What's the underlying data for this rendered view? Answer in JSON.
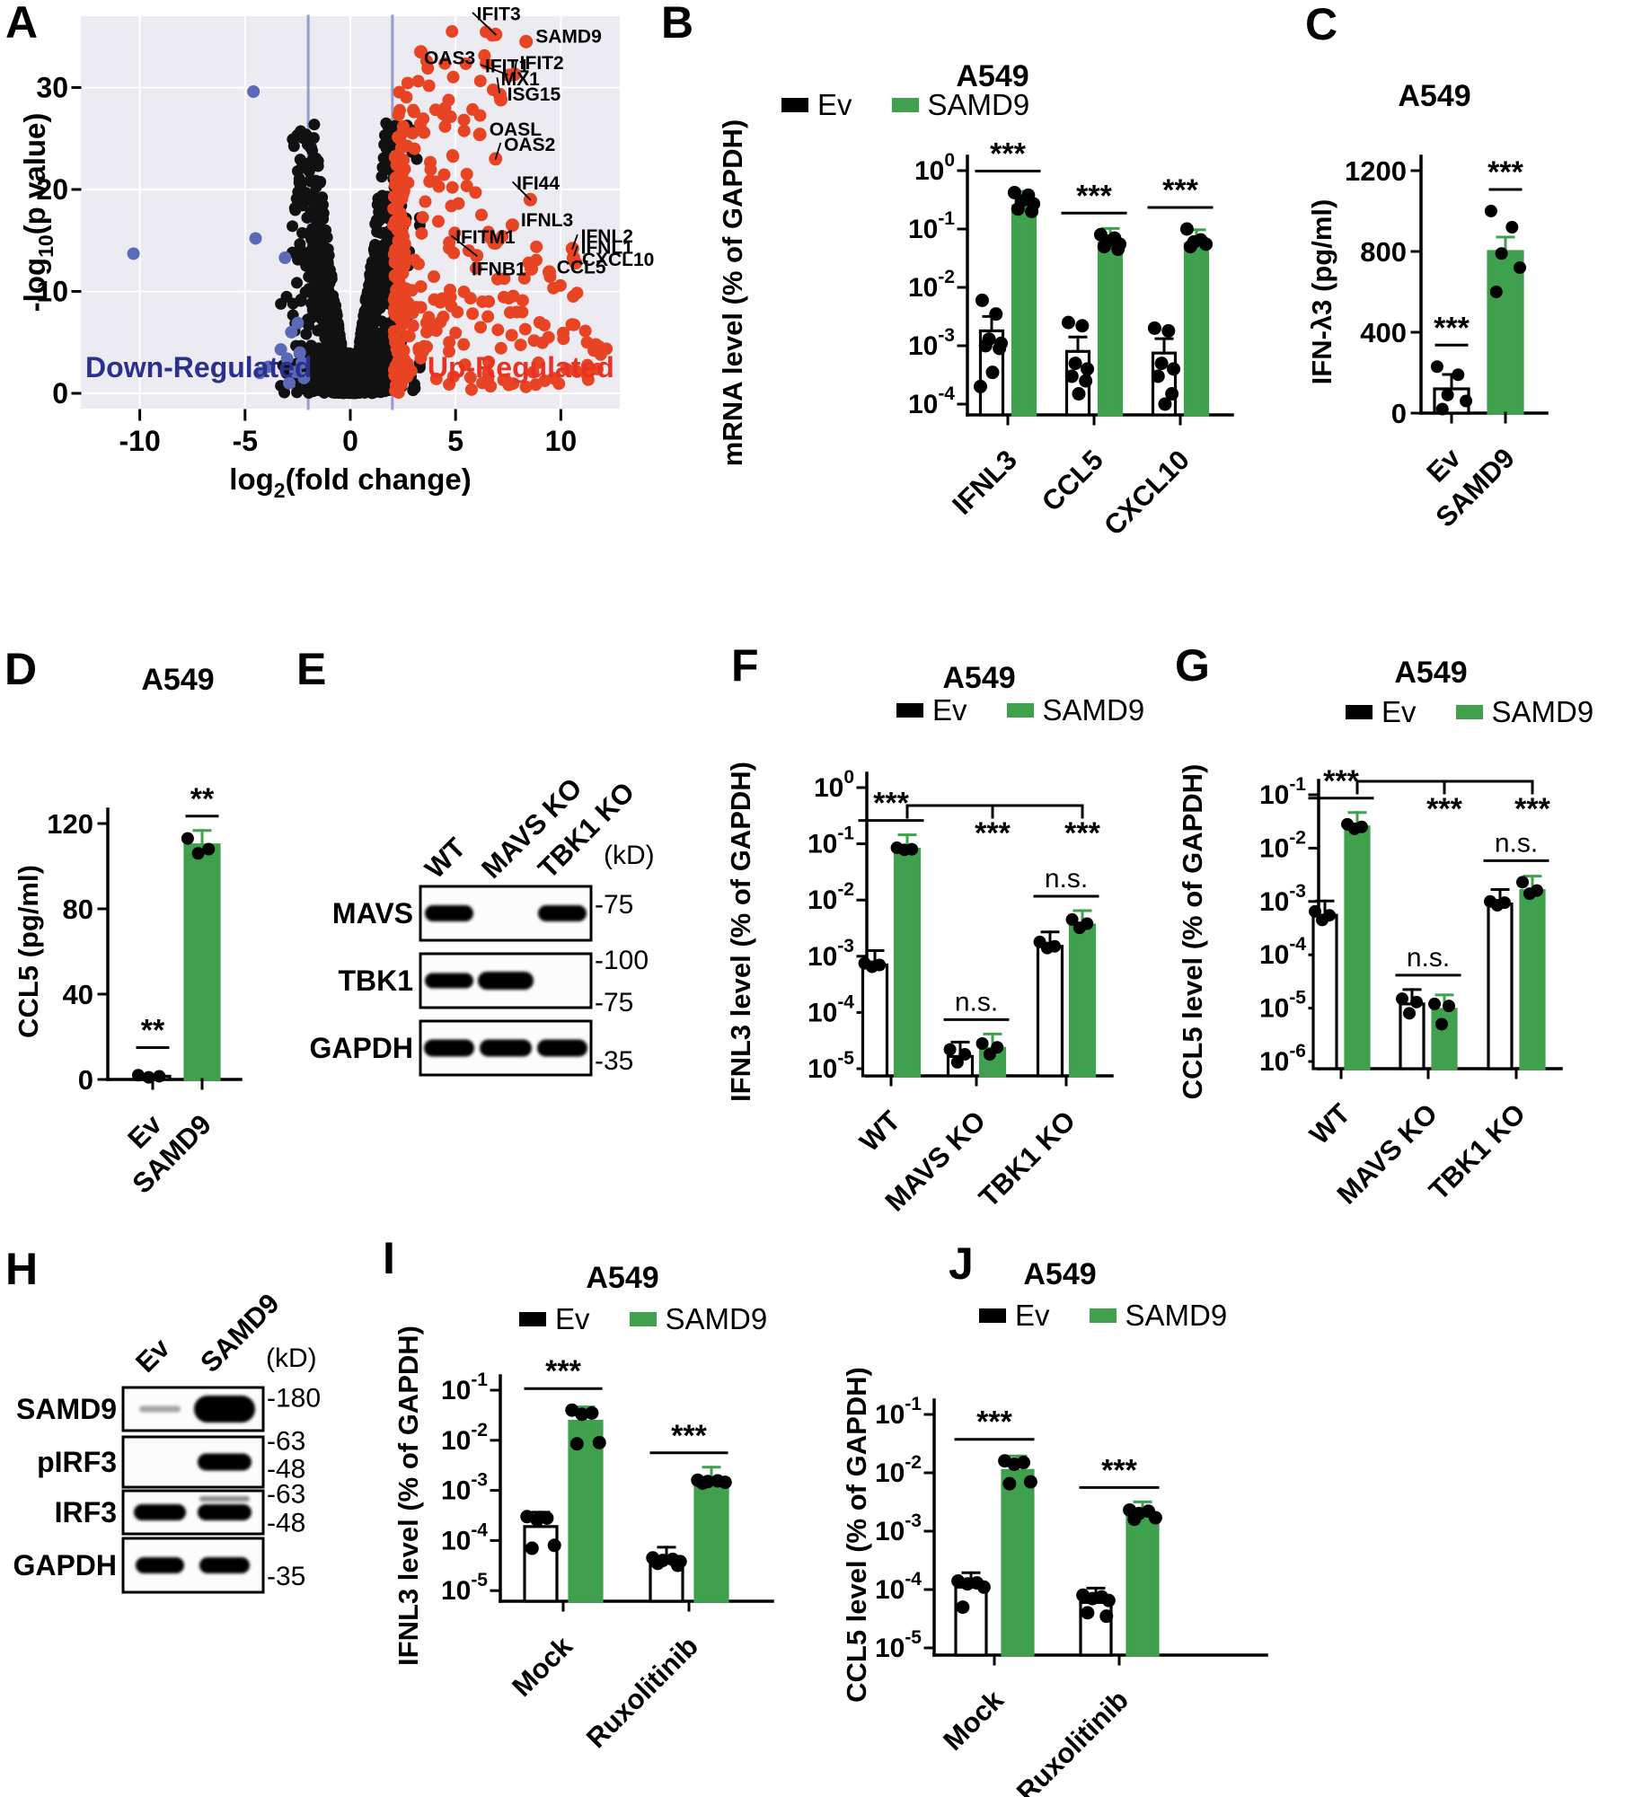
{
  "colors": {
    "green": "#3FA04D",
    "up_red": "#E84423",
    "down_blue": "#5A6AB7",
    "threshold_line": "#969BD2",
    "down_text": "#2B2F8E",
    "up_text": "#E93223",
    "plot_bg": "#EBEBF1",
    "grid": "#FFFFFF",
    "black": "#000000"
  },
  "legend": {
    "ev": "Ev",
    "samd9": "SAMD9"
  },
  "panels": {
    "A": {
      "label": "A",
      "chart_data": {
        "type": "scatter",
        "xlabel_main": "log",
        "xlabel_sub": "2",
        "xlabel_rest": "(fold change)",
        "ylabel_main": "-log",
        "ylabel_sub": "10",
        "ylabel_rest": "(p value)",
        "xticks": [
          -10,
          -5,
          0,
          5,
          10
        ],
        "yticks": [
          0,
          10,
          20,
          30
        ],
        "xlim": [
          -12.8,
          12.8
        ],
        "ylim": [
          -1.5,
          37
        ],
        "threshold_x": [
          -2,
          2
        ],
        "annotations": [
          {
            "text": "Down-Regulated",
            "x": -7.2,
            "y": 1.6,
            "colorKey": "down_text"
          },
          {
            "text": "Up-Regulated",
            "x": 8.1,
            "y": 1.6,
            "colorKey": "up_text"
          }
        ],
        "genes": [
          {
            "name": "IFIT3",
            "x": 6.9,
            "y": 35.2,
            "lx": 6.0,
            "ly": 36.6,
            "anchor": "start"
          },
          {
            "name": "SAMD9",
            "x": 8.35,
            "y": 34.5,
            "lx": 8.8,
            "ly": 34.4,
            "anchor": "start"
          },
          {
            "name": "OAS3",
            "x": 3.35,
            "y": 33.5,
            "lx": 3.5,
            "ly": 32.3,
            "anchor": "start"
          },
          {
            "name": "IFIT1",
            "x": 7.55,
            "y": 31.2,
            "lx": 6.4,
            "ly": 31.5,
            "anchor": "start"
          },
          {
            "name": "IFIT2",
            "x": 7.8,
            "y": 31.3,
            "lx": 8.05,
            "ly": 31.8,
            "anchor": "start"
          },
          {
            "name": "MX1",
            "x": 7.1,
            "y": 29.3,
            "lx": 7.15,
            "ly": 30.2,
            "anchor": "start"
          },
          {
            "name": "ISG15",
            "x": 7.15,
            "y": 28.8,
            "lx": 7.45,
            "ly": 28.7,
            "anchor": "start"
          },
          {
            "name": "OASL",
            "x": 6.15,
            "y": 25.4,
            "lx": 6.6,
            "ly": 25.3,
            "anchor": "start"
          },
          {
            "name": "OAS2",
            "x": 6.9,
            "y": 23.0,
            "lx": 7.3,
            "ly": 23.8,
            "anchor": "start"
          },
          {
            "name": "IFI44",
            "x": 8.55,
            "y": 19.0,
            "lx": 7.9,
            "ly": 20.0,
            "anchor": "start"
          },
          {
            "name": "IFNL3",
            "x": 7.7,
            "y": 16.5,
            "lx": 8.1,
            "ly": 16.4,
            "anchor": "start"
          },
          {
            "name": "IFITM1",
            "x": 6.0,
            "y": 13.5,
            "lx": 5.0,
            "ly": 14.7,
            "anchor": "start"
          },
          {
            "name": "IFNL2",
            "x": 10.55,
            "y": 14.2,
            "lx": 10.95,
            "ly": 14.8,
            "anchor": "start"
          },
          {
            "name": "IFNL1",
            "x": 10.6,
            "y": 13.3,
            "lx": 10.95,
            "ly": 13.7,
            "anchor": "start"
          },
          {
            "name": "CXCL10",
            "x": 10.7,
            "y": 12.8,
            "lx": 11.0,
            "ly": 12.5,
            "anchor": "start"
          },
          {
            "name": "IFNB1",
            "x": 8.6,
            "y": 12.2,
            "lx": 8.35,
            "ly": 11.6,
            "anchor": "end"
          },
          {
            "name": "CCL5",
            "x": 9.45,
            "y": 11.9,
            "lx": 9.8,
            "ly": 11.75,
            "anchor": "start"
          }
        ],
        "down_points": [
          [
            -10.3,
            13.7
          ],
          [
            -4.6,
            29.6
          ],
          [
            -4.5,
            15.2
          ],
          [
            -3.1,
            13.3
          ],
          [
            -2.5,
            6.9
          ],
          [
            -2.8,
            6.0
          ],
          [
            -3.3,
            4.3
          ],
          [
            -2.4,
            4.0
          ],
          [
            -3.0,
            3.4
          ],
          [
            -2.3,
            3.0
          ],
          [
            -3.9,
            2.6
          ],
          [
            -2.6,
            2.1
          ],
          [
            -4.3,
            2.0
          ],
          [
            -2.2,
            1.5
          ],
          [
            -2.9,
            1.0
          ]
        ],
        "extra_black": [
          [
            -2.55,
            19.1
          ],
          [
            -2.75,
            16.4
          ],
          [
            -2.35,
            9.2
          ],
          [
            -1.9,
            15.8
          ],
          [
            -2.1,
            12.5
          ]
        ],
        "cloud": {
          "black_n": 1900,
          "red_n": 330,
          "seed": 42
        }
      }
    },
    "B": {
      "label": "B",
      "chart_data": {
        "type": "bar",
        "scale": "log",
        "title": "A549",
        "ylabel": "mRNA level (% of GAPDH)",
        "yexps": [
          0,
          -1,
          -2,
          -3,
          -4
        ],
        "categories": [
          "IFNL3",
          "CCL5",
          "CXCL10"
        ],
        "series": [
          {
            "name": "Ev",
            "values": [
              0.0018,
              0.0008,
              0.00075
            ],
            "dots": [
              [
                0.006,
                0.0035,
                0.0013,
                0.0011,
                0.001,
                0.0009,
                0.00035,
                0.0002
              ],
              [
                0.0025,
                0.0022,
                0.0005,
                0.0004,
                0.0003,
                0.00025,
                0.00015
              ],
              [
                0.002,
                0.0018,
                0.0005,
                0.0004,
                0.0003,
                0.00015,
                0.0001
              ]
            ]
          },
          {
            "name": "SAMD9",
            "values": [
              0.25,
              0.058,
              0.055
            ],
            "dots": [
              [
                0.42,
                0.38,
                0.3,
                0.27,
                0.22,
                0.2
              ],
              [
                0.08,
                0.07,
                0.062,
                0.055,
                0.05,
                0.045
              ],
              [
                0.1,
                0.065,
                0.06,
                0.055,
                0.05
              ]
            ]
          }
        ],
        "pair_sig": [
          "***",
          "***",
          "***"
        ]
      }
    },
    "C": {
      "label": "C",
      "chart_data": {
        "type": "bar",
        "scale": "linear",
        "title": "A549",
        "ylabel": "IFN-λ3 (pg/ml)",
        "yticks": [
          0,
          400,
          800,
          1200
        ],
        "categories": [
          "Ev",
          "SAMD9"
        ],
        "values": [
          120,
          800
        ],
        "dots": [
          [
            230,
            190,
            90,
            60,
            20
          ],
          [
            1000,
            920,
            790,
            720,
            600
          ]
        ],
        "sig": "***"
      }
    },
    "D": {
      "label": "D",
      "chart_data": {
        "type": "bar",
        "scale": "linear",
        "title": "A549",
        "ylabel": "CCL5 (pg/ml)",
        "yticks": [
          0,
          40,
          80,
          120
        ],
        "categories": [
          "Ev",
          "SAMD9"
        ],
        "values": [
          1.5,
          110
        ],
        "dots": [
          [
            2,
            1.5,
            1
          ],
          [
            113,
            108,
            106
          ]
        ],
        "sig": "**"
      }
    },
    "E": {
      "label": "E",
      "blot": {
        "kd": "(kD)",
        "lanes": [
          "WT",
          "MAVS KO",
          "TBK1 KO"
        ],
        "rows": [
          {
            "protein": "MAVS",
            "markers": [
              {
                "t": "-75",
                "f": 0.32
              }
            ],
            "bands": [
              1,
              0,
              1
            ]
          },
          {
            "protein": "TBK1",
            "markers": [
              {
                "t": "-100",
                "f": 0.1
              },
              {
                "t": "-75",
                "f": 0.88
              }
            ],
            "bands": [
              1,
              1,
              0
            ]
          },
          {
            "protein": "GAPDH",
            "markers": [
              {
                "t": "-35",
                "f": 0.72
              }
            ],
            "bands": [
              1,
              1,
              1
            ]
          }
        ]
      }
    },
    "F": {
      "label": "F",
      "chart_data": {
        "type": "bar",
        "scale": "log",
        "title": "A549",
        "ylabel": "IFNL3 level (% of GAPDH)",
        "yexps": [
          0,
          -1,
          -2,
          -3,
          -4,
          -5
        ],
        "categories": [
          "WT",
          "MAVS KO",
          "TBK1 KO"
        ],
        "series": [
          {
            "name": "Ev",
            "values": [
              0.0007,
              1.65e-05,
              0.0015
            ],
            "dots": [
              [
                0.00075,
                0.0007,
                0.00065
              ],
              [
                2.2e-05,
                1.8e-05,
                1.3e-05
              ],
              [
                0.0018,
                0.0015,
                0.0014
              ]
            ]
          },
          {
            "name": "SAMD9",
            "values": [
              0.08,
              2.3e-05,
              0.0036
            ],
            "dots": [
              [
                0.085,
                0.08,
                0.078
              ],
              [
                2.8e-05,
                2.4e-05,
                1.8e-05
              ],
              [
                0.0045,
                0.0038,
                0.0032
              ]
            ]
          }
        ],
        "pair_sig": [
          "***",
          "n.s.",
          "n.s."
        ],
        "bracket": {
          "labels": [
            "***",
            "***"
          ]
        }
      }
    },
    "G": {
      "label": "G",
      "chart_data": {
        "type": "bar",
        "scale": "log",
        "title": "A549",
        "ylabel": "CCL5 level (% of GAPDH)",
        "yexps": [
          -1,
          -2,
          -3,
          -4,
          -5,
          -6
        ],
        "categories": [
          "WT",
          "MAVS KO",
          "TBK1 KO"
        ],
        "series": [
          {
            "name": "Ev",
            "values": [
              0.00055,
              1.2e-05,
              0.0009
            ],
            "dots": [
              [
                0.00065,
                0.00055,
                0.00045
              ],
              [
                1.5e-05,
                1.3e-05,
                8e-06
              ],
              [
                0.001,
                0.00095,
                0.00085
              ]
            ]
          },
          {
            "name": "SAMD9",
            "values": [
              0.025,
              9.5e-06,
              0.0016
            ],
            "dots": [
              [
                0.028,
                0.025,
                0.023
              ],
              [
                1.2e-05,
                1.1e-05,
                5e-06
              ],
              [
                0.0023,
                0.0016,
                0.0014
              ]
            ]
          }
        ],
        "pair_sig": [
          "***",
          "n.s.",
          "n.s."
        ],
        "bracket": {
          "labels": [
            "***",
            "***"
          ]
        }
      }
    },
    "H": {
      "label": "H",
      "blot": {
        "kd": "(kD)",
        "lanes": [
          "Ev",
          "SAMD9"
        ],
        "rows": [
          {
            "protein": "SAMD9",
            "markers": [
              {
                "t": "-180",
                "f": 0.22
              }
            ],
            "bands": [
              0.35,
              1
            ]
          },
          {
            "protein": "pIRF3",
            "markers": [
              {
                "t": "-63",
                "f": 0.06
              },
              {
                "t": "-48",
                "f": 0.62
              }
            ],
            "bands": [
              0,
              1
            ]
          },
          {
            "protein": "IRF3",
            "markers": [
              {
                "t": "-63",
                "f": 0.05
              },
              {
                "t": "-48",
                "f": 0.72
              }
            ],
            "bands": [
              1,
              1
            ]
          },
          {
            "protein": "GAPDH",
            "markers": [
              {
                "t": "-35",
                "f": 0.68
              }
            ],
            "bands": [
              1,
              1
            ]
          }
        ]
      }
    },
    "I": {
      "label": "I",
      "chart_data": {
        "type": "bar",
        "scale": "log",
        "title": "A549",
        "ylabel": "IFNL3 level (% of GAPDH)",
        "yexps": [
          -1,
          -2,
          -3,
          -4,
          -5
        ],
        "categories": [
          "Mock",
          "Ruxolitinib"
        ],
        "series": [
          {
            "name": "Ev",
            "values": [
              0.00019,
              3.8e-05
            ],
            "dots": [
              [
                0.0003,
                0.00028,
                0.00026,
                8e-05,
                7e-05
              ],
              [
                4.5e-05,
                4.2e-05,
                4e-05,
                3.8e-05,
                3.5e-05,
                3.2e-05
              ]
            ]
          },
          {
            "name": "SAMD9",
            "values": [
              0.024,
              0.0015
            ],
            "dots": [
              [
                0.04,
                0.035,
                0.033,
                0.009,
                0.0085
              ],
              [
                0.0016,
                0.00155,
                0.0015,
                0.00145,
                0.0014
              ]
            ]
          }
        ],
        "pair_sig": [
          "***",
          "***"
        ]
      }
    },
    "J": {
      "label": "J",
      "chart_data": {
        "type": "bar",
        "scale": "log",
        "title": "A549",
        "ylabel": "CCL5 level (% of GAPDH)",
        "yexps": [
          -1,
          -2,
          -3,
          -4,
          -5
        ],
        "categories": [
          "Mock",
          "Ruxolitinib"
        ],
        "series": [
          {
            "name": "Ev",
            "values": [
              0.00011,
              6e-05
            ],
            "dots": [
              [
                0.00014,
                0.00013,
                0.000125,
                0.00011,
                5e-05
              ],
              [
                8e-05,
                7.5e-05,
                7e-05,
                6.5e-05,
                4e-05,
                3.5e-05
              ]
            ]
          },
          {
            "name": "SAMD9",
            "values": [
              0.011,
              0.0018
            ],
            "dots": [
              [
                0.016,
                0.015,
                0.014,
                0.007,
                0.0065
              ],
              [
                0.0023,
                0.0022,
                0.002,
                0.0017,
                0.0016
              ]
            ]
          }
        ],
        "pair_sig": [
          "***",
          "***"
        ]
      }
    }
  }
}
